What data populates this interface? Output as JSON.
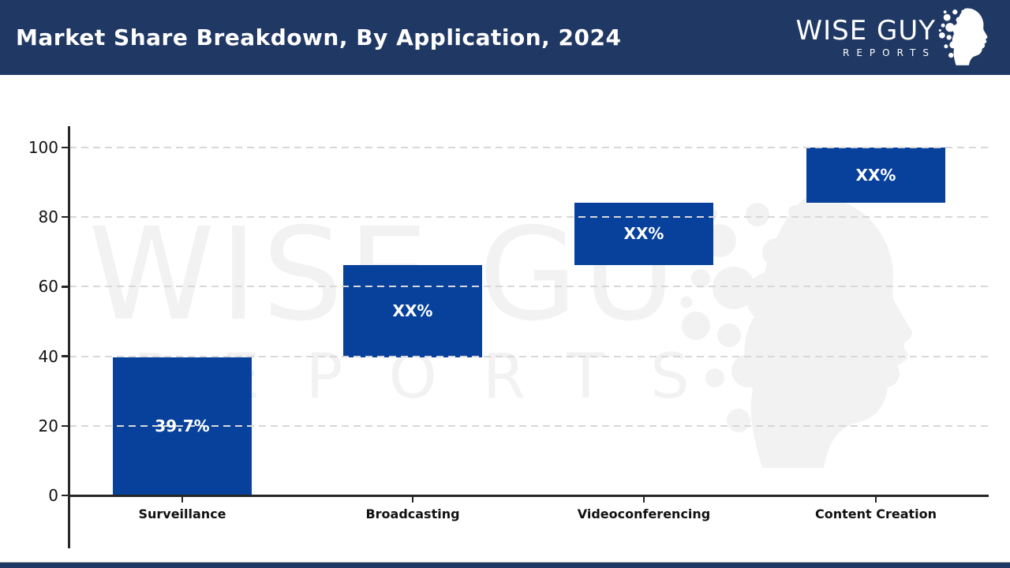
{
  "header": {
    "title": "Market Share Breakdown, By Application, 2024",
    "logo": {
      "line1": "WISE GUY",
      "line2": "REPORTS"
    }
  },
  "watermark": {
    "line1": "WISE GU",
    "line2": "REPORTS"
  },
  "colors": {
    "header_bg": "#203864",
    "bar_blue": "#07419b",
    "gridline": "#d8d8d8",
    "axis": "#262626",
    "watermark_gray": "#f2f2f2"
  },
  "chart_data": {
    "type": "bar",
    "subtype": "waterfall",
    "title": "Market Share Breakdown, By Application, 2024",
    "categories": [
      "Surveillance",
      "Broadcasting",
      "Videoconferencing",
      "Content Creation"
    ],
    "segments": [
      {
        "category": "Surveillance",
        "start": 0,
        "end": 39.7,
        "label": "39.7%"
      },
      {
        "category": "Broadcasting",
        "start": 39.7,
        "end": 66.2,
        "label": "XX%"
      },
      {
        "category": "Videoconferencing",
        "start": 66.2,
        "end": 84.1,
        "label": "XX%"
      },
      {
        "category": "Content Creation",
        "start": 84.1,
        "end": 100,
        "label": "XX%"
      }
    ],
    "yticks": [
      0,
      20,
      40,
      60,
      80,
      100
    ],
    "ylim": [
      0,
      106
    ],
    "xlabel": "",
    "ylabel": "",
    "grid": "horizontal-dashed-above-bars",
    "legend": "none",
    "bar_color": "#07419b"
  }
}
